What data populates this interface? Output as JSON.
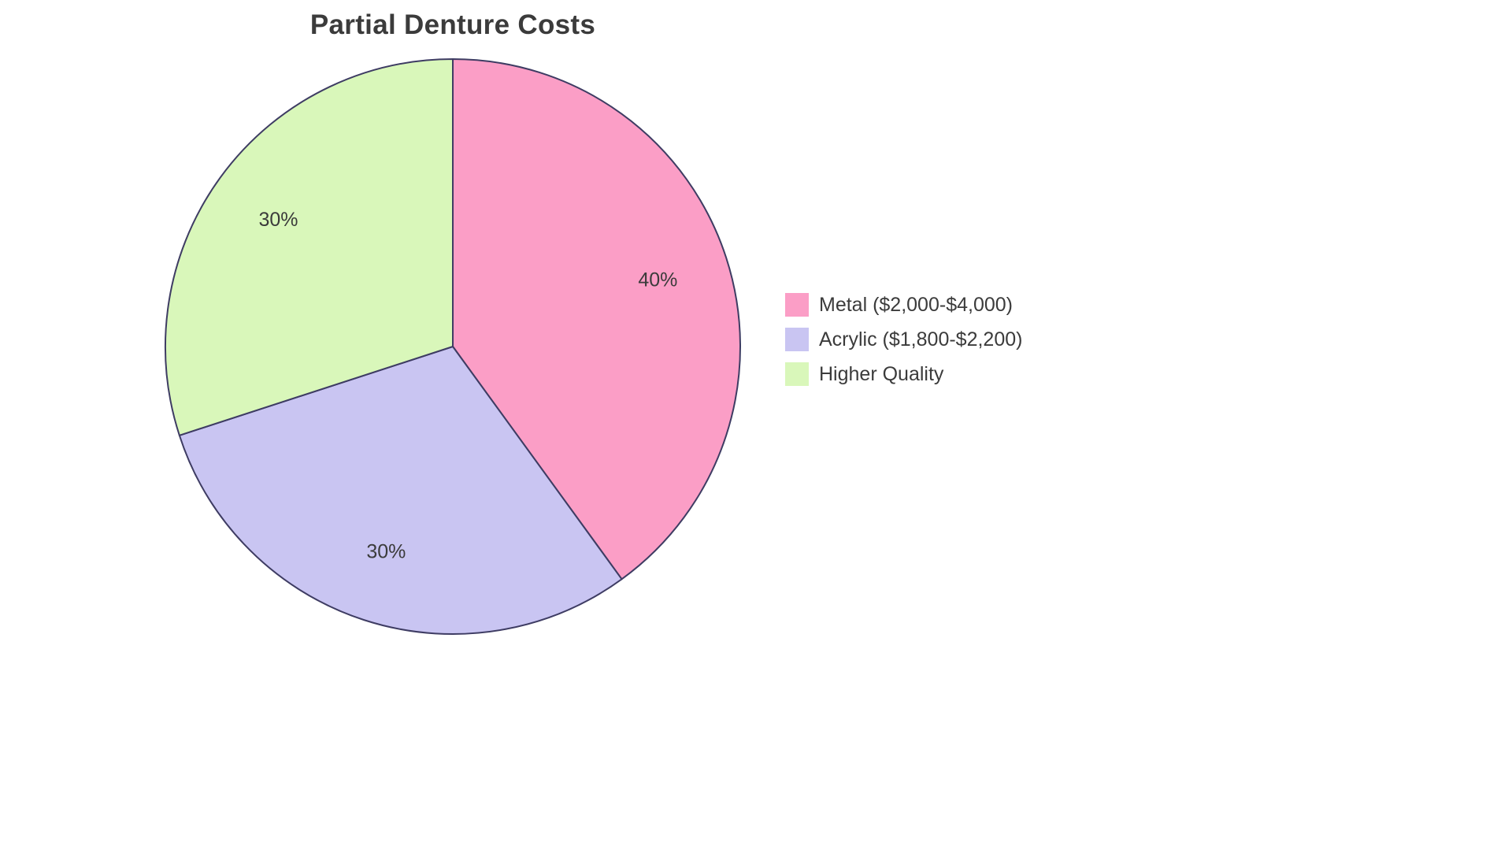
{
  "chart_data": {
    "type": "pie",
    "title": "Partial Denture Costs",
    "slices": [
      {
        "label": "Metal ($2,000-$4,000)",
        "value": 40,
        "pct_label": "40%",
        "color": "#FB9EC6"
      },
      {
        "label": "Acrylic ($1,800-$2,200)",
        "value": 30,
        "pct_label": "30%",
        "color": "#C9C5F2"
      },
      {
        "label": "Higher Quality",
        "value": 30,
        "pct_label": "30%",
        "color": "#D9F7BA"
      }
    ],
    "start_angle_deg": 0,
    "direction": "clockwise",
    "stroke_color": "#3E3C63",
    "stroke_width": 2,
    "label_color": "#3B3B3B",
    "legend_position": "right",
    "background": "#FFFFFF"
  }
}
